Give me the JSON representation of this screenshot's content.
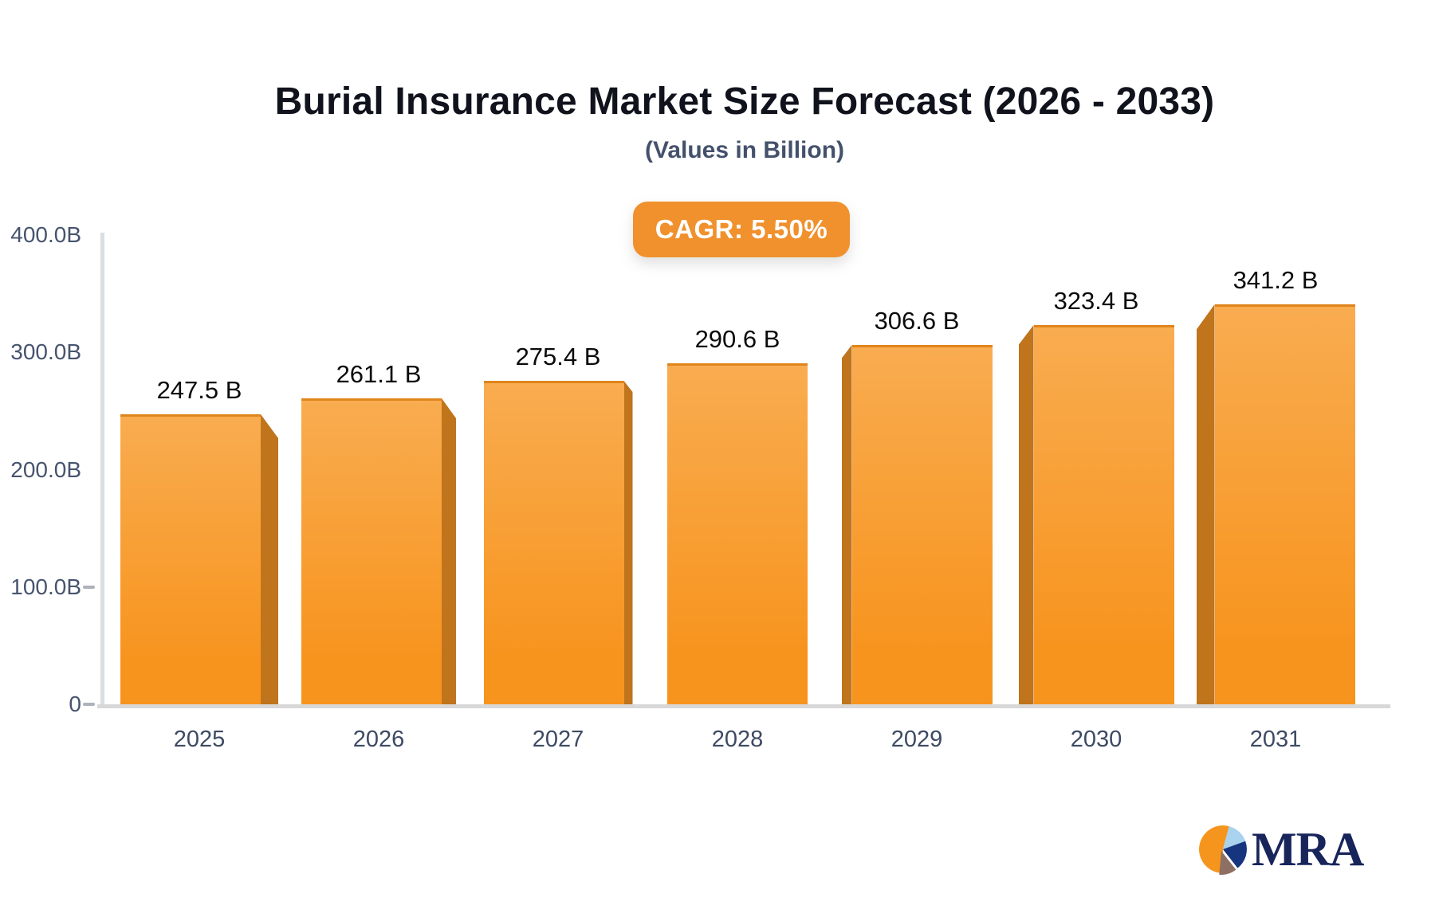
{
  "chart_data": {
    "type": "bar",
    "title": "Burial Insurance Market Size Forecast (2026 - 2033)",
    "subtitle": "(Values in Billion)",
    "cagr_label": "CAGR: 5.50%",
    "categories": [
      "2025",
      "2026",
      "2027",
      "2028",
      "2029",
      "2030",
      "2031"
    ],
    "values": [
      247.5,
      261.1,
      275.4,
      290.6,
      306.6,
      323.4,
      341.2
    ],
    "value_labels": [
      "247.5 B",
      "261.1 B",
      "275.4 B",
      "290.6 B",
      "306.6 B",
      "323.4 B",
      "341.2 B"
    ],
    "unit": "B",
    "ylim": [
      0,
      400
    ],
    "yticks": [
      {
        "label": "400.0B",
        "value": 400,
        "tick": false
      },
      {
        "label": "300.0B",
        "value": 300,
        "tick": false
      },
      {
        "label": "200.0B",
        "value": 200,
        "tick": false
      },
      {
        "label": "100.0B",
        "value": 100,
        "tick": true
      },
      {
        "label": "0",
        "value": 0,
        "tick": true
      }
    ],
    "grid": false,
    "legend": false,
    "bar_style": "3d-perspective",
    "bar_colors": {
      "face_top": "#F9AC50",
      "face_bottom": "#F7941E",
      "side": "#C0741C",
      "top_edge": "#E0851C"
    }
  },
  "colors": {
    "background": "#FFFFFF",
    "axis_line": "#DADDE2",
    "baseline": "#D8D8D8",
    "tick": "#ADB2BB",
    "y_label": "#47546E",
    "x_label": "#3D4A63",
    "value_label": "#0B0B0B",
    "title": "#10131C",
    "subtitle": "#44516B",
    "badge_bg": "#F0912D",
    "badge_text": "#FFFFFF",
    "logo_text": "#18255B"
  },
  "logo": {
    "text": "MRA",
    "pie": {
      "orange": "#F6951D",
      "light_blue": "#A9D2EE",
      "navy": "#16357E",
      "brown": "#8E6F63"
    }
  }
}
